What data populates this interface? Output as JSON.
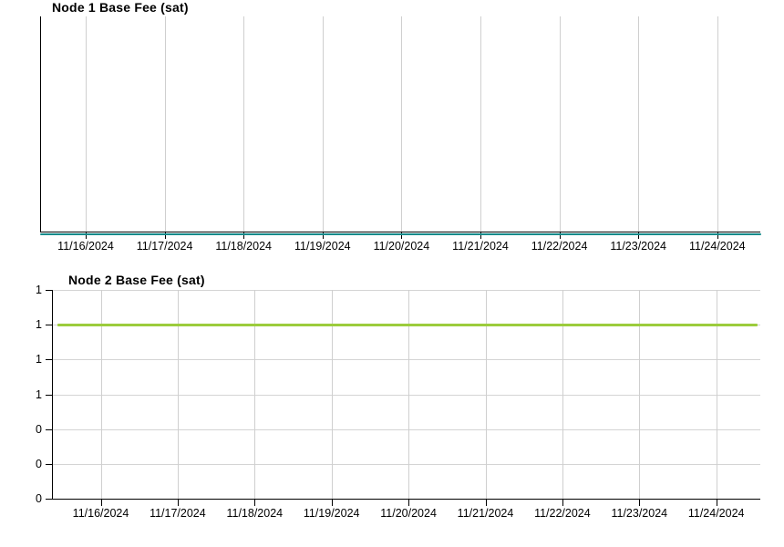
{
  "chart_data": [
    {
      "type": "line",
      "title": "Node 1 Base Fee (sat)",
      "categories": [
        "11/16/2024",
        "11/17/2024",
        "11/18/2024",
        "11/19/2024",
        "11/20/2024",
        "11/21/2024",
        "11/22/2024",
        "11/23/2024",
        "11/24/2024"
      ],
      "series": [
        {
          "name": "Node 1 Base Fee (sat)",
          "values": [
            1,
            1,
            1,
            1,
            1,
            1,
            1,
            1,
            1
          ],
          "color": "#148c8c"
        }
      ],
      "xlabel": "",
      "ylabel": "",
      "ylim": [
        1,
        1
      ],
      "y_ticks": [],
      "grid": "vertical",
      "legend": "none"
    },
    {
      "type": "line",
      "title": "Node 2 Base Fee (sat)",
      "categories": [
        "11/16/2024",
        "11/17/2024",
        "11/18/2024",
        "11/19/2024",
        "11/20/2024",
        "11/21/2024",
        "11/22/2024",
        "11/23/2024",
        "11/24/2024"
      ],
      "series": [
        {
          "name": "Node 2 Base Fee (sat)",
          "values": [
            1,
            1,
            1,
            1,
            1,
            1,
            1,
            1,
            1
          ],
          "color": "#9ccc3c"
        }
      ],
      "xlabel": "",
      "ylabel": "",
      "ylim": [
        0,
        1.2
      ],
      "y_ticks": [
        {
          "value": 1.2,
          "label": "1"
        },
        {
          "value": 1.0,
          "label": "1"
        },
        {
          "value": 0.8,
          "label": "1"
        },
        {
          "value": 0.6,
          "label": "1"
        },
        {
          "value": 0.4,
          "label": "0"
        },
        {
          "value": 0.2,
          "label": "0"
        },
        {
          "value": 0.0,
          "label": "0"
        }
      ],
      "grid": "both",
      "legend": "none"
    }
  ]
}
